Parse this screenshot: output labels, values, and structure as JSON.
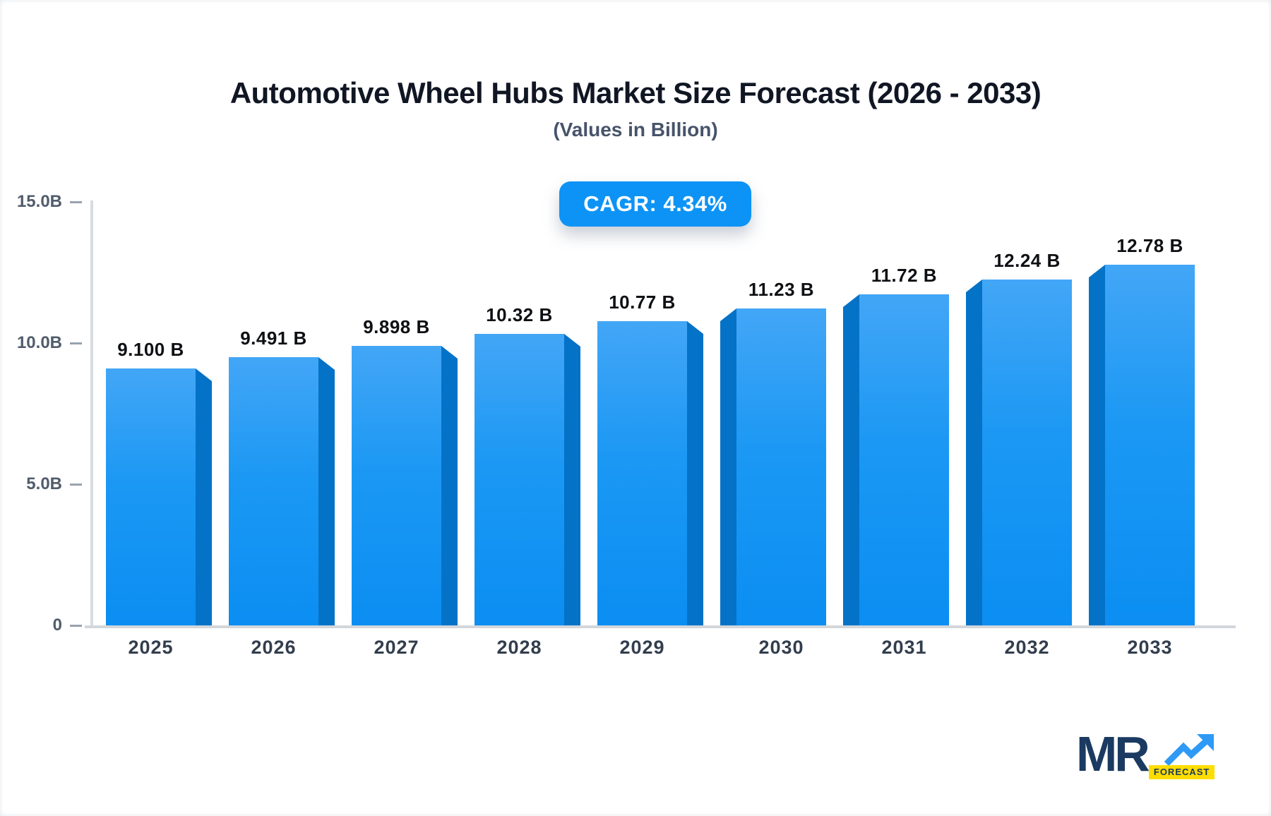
{
  "header": {
    "title": "Automotive Wheel Hubs Market Size Forecast (2026 - 2033)",
    "subtitle": "(Values in Billion)"
  },
  "badge": {
    "label": "CAGR: 4.34%",
    "background": "#0d93f6",
    "text_color": "#ffffff"
  },
  "chart_data": {
    "type": "bar",
    "title": "Automotive Wheel Hubs Market Size Forecast (2026 - 2033)",
    "subtitle": "(Values in Billion)",
    "xlabel": "",
    "ylabel": "",
    "unit": "Billion",
    "categories": [
      "2025",
      "2026",
      "2027",
      "2028",
      "2029",
      "2030",
      "2031",
      "2032",
      "2033"
    ],
    "values": [
      9.1,
      9.491,
      9.898,
      10.32,
      10.77,
      11.23,
      11.72,
      12.24,
      12.78
    ],
    "value_labels": [
      "9.100 B",
      "9.491 B",
      "9.898 B",
      "10.32 B",
      "10.77 B",
      "11.23 B",
      "11.72 B",
      "12.24 B",
      "12.78 B"
    ],
    "ylim": [
      0,
      15
    ],
    "yticks": [
      {
        "label": "15.0B",
        "value": 15
      },
      {
        "label": "10.0B",
        "value": 10
      },
      {
        "label": "5.0B",
        "value": 5
      },
      {
        "label": "0",
        "value": 0
      }
    ],
    "grid": false,
    "legend": null,
    "bar_style": "pseudo-3d",
    "colors": {
      "bar_face_top": "#43a6f6",
      "bar_face_bottom": "#0b8ef2",
      "bar_side": "#0472c7",
      "axis_line": "#d8dbe0",
      "tick_text": "#515c6b",
      "value_text": "#0e1013",
      "category_text": "#323d4d"
    }
  },
  "logo": {
    "text": "MR",
    "sub_text": "FORECAST",
    "mr_color": "#1b3a61",
    "arrow_color": "#2e9af5",
    "forecast_bg": "#ffdd00"
  }
}
